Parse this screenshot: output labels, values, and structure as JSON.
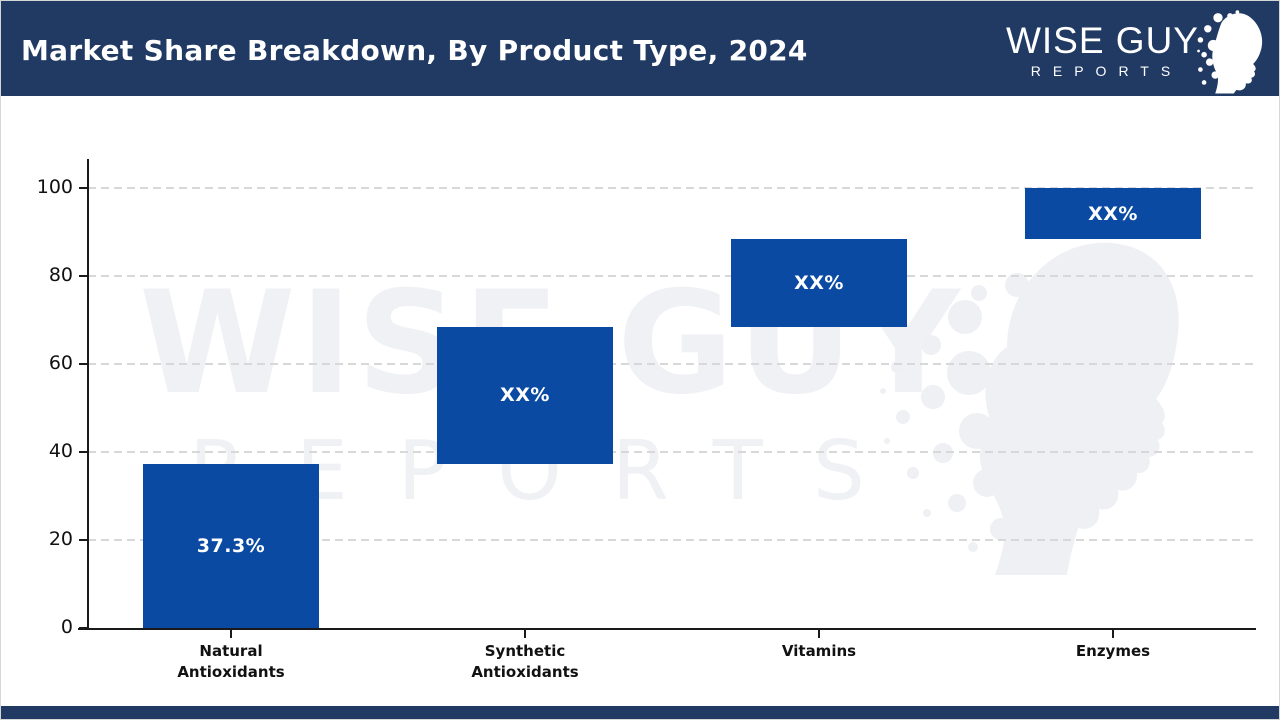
{
  "header": {
    "bg_color": "#213a64",
    "title": "Market Share Breakdown, By Product Type, 2024",
    "logo": {
      "line1": "WISE GUY",
      "line2": "REPORTS"
    }
  },
  "watermark": {
    "line1": "WISE GUY",
    "line2": "REPORTS"
  },
  "footer": {
    "bg_color": "#213a64"
  },
  "chart_data": {
    "type": "bar",
    "subtype": "waterfall",
    "title": "Market Share Breakdown, By Product Type, 2024",
    "unit": "%",
    "bar_color": "#0b4aa2",
    "value_label_color": "#ffffff",
    "grid": "horizontal-dashed",
    "legend": "none",
    "categories": [
      "Natural Antioxidants",
      "Synthetic Antioxidants",
      "Vitamins",
      "Enzymes"
    ],
    "category_lines": [
      [
        "Natural",
        "Antioxidants"
      ],
      [
        "Synthetic",
        "Antioxidants"
      ],
      [
        "Vitamins"
      ],
      [
        "Enzymes"
      ]
    ],
    "yticks": [
      0,
      20,
      40,
      60,
      80,
      100
    ],
    "ylim": [
      0,
      106
    ],
    "segments": [
      {
        "category": "Natural Antioxidants",
        "start": 0,
        "end": 37.3,
        "value_label": "37.3%"
      },
      {
        "category": "Synthetic Antioxidants",
        "start": 37.3,
        "end": 68.5,
        "value_label": "XX%"
      },
      {
        "category": "Vitamins",
        "start": 68.5,
        "end": 88.3,
        "value_label": "XX%"
      },
      {
        "category": "Enzymes",
        "start": 88.3,
        "end": 100,
        "value_label": "XX%"
      }
    ]
  }
}
